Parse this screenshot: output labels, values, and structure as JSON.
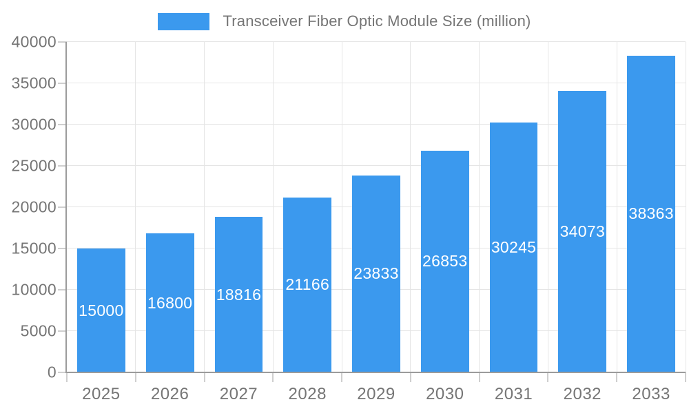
{
  "legend": {
    "label": "Transceiver Fiber Optic Module Size (million)"
  },
  "chart_data": {
    "type": "bar",
    "title": "Transceiver Fiber Optic Module Size (million)",
    "categories": [
      "2025",
      "2026",
      "2027",
      "2028",
      "2029",
      "2030",
      "2031",
      "2032",
      "2033"
    ],
    "values": [
      15000,
      16800,
      18816,
      21166,
      23833,
      26853,
      30245,
      34073,
      38363
    ],
    "xlabel": "",
    "ylabel": "",
    "ylim": [
      0,
      40000
    ],
    "yticks": [
      0,
      5000,
      10000,
      15000,
      20000,
      25000,
      30000,
      35000,
      40000
    ],
    "grid": true,
    "legend_position": "top",
    "value_labels": "inside-center"
  },
  "theme": {
    "bar_color": "#3b99ee",
    "bar_label_color": "#ffffff",
    "axis_line_color": "#9b9b9b",
    "grid_color": "#e5e5e5",
    "tick_color": "#cfcfcf",
    "text_color": "#757575",
    "background": "#ffffff"
  }
}
